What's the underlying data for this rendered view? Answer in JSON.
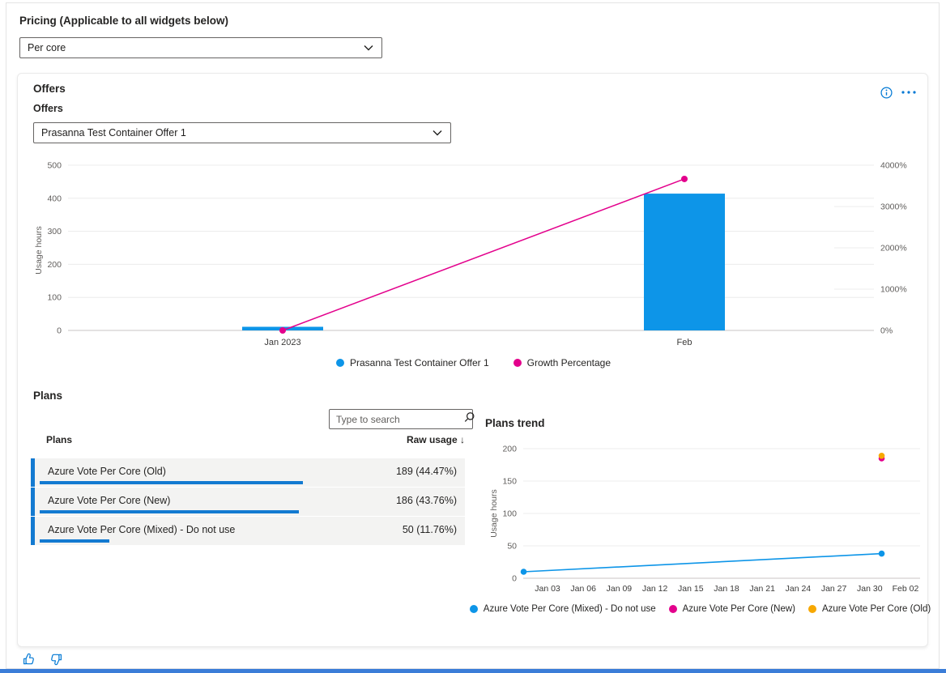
{
  "pricing": {
    "label": "Pricing (Applicable to all widgets below)",
    "selected": "Per core"
  },
  "offers_card": {
    "title": "Offers",
    "info_icon": "info-circle",
    "more_icon": "ellipsis",
    "offers_label": "Offers",
    "offers_selected": "Prasanna Test Container Offer 1"
  },
  "plans": {
    "section_title": "Plans",
    "search_placeholder": "Type to search",
    "columns": {
      "plans": "Plans",
      "raw_usage": "Raw usage",
      "sort_icon": "↓"
    },
    "rows": [
      {
        "name": "Azure Vote Per Core (Old)",
        "display": "189 (44.47%)",
        "value": 189,
        "pct": 44.47
      },
      {
        "name": "Azure Vote Per Core (New)",
        "display": "186 (43.76%)",
        "value": 186,
        "pct": 43.76
      },
      {
        "name": "Azure Vote Per Core (Mixed) - Do not use",
        "display": "50 (11.76%)",
        "value": 50,
        "pct": 11.76
      }
    ]
  },
  "colors": {
    "blue": "#0d95e8",
    "magenta": "#e3008c",
    "orange": "#f7a800",
    "accent": "#0078d4",
    "progress": "#137ad1",
    "bottom_bar": "#3b7dd8",
    "grid": "#ececec",
    "axis": "#c8c6c4",
    "text_axis": "#605e5c"
  },
  "chart_data": [
    {
      "id": "offers-usage-trend",
      "type": "bar",
      "subtype": "combo-bar-line-dual-axis",
      "categories": [
        "Jan 2023",
        "Feb"
      ],
      "series": [
        {
          "name": "Prasanna Test Container Offer 1",
          "kind": "bar",
          "yaxis": "left",
          "color_key": "blue",
          "values": [
            11,
            414
          ]
        },
        {
          "name": "Growth Percentage",
          "kind": "line",
          "yaxis": "right",
          "color_key": "magenta",
          "values": [
            0,
            3667
          ]
        }
      ],
      "left_axis": {
        "label": "Usage hours",
        "ticks": [
          0,
          100,
          200,
          300,
          400,
          500
        ],
        "max": 500
      },
      "right_axis": {
        "ticks": [
          "0%",
          "1000%",
          "2000%",
          "3000%",
          "4000%"
        ],
        "max": 4000
      },
      "legend_position": "bottom-center",
      "grid": true
    },
    {
      "id": "plans-trend",
      "type": "line",
      "title": "Plans trend",
      "yaxis": {
        "label": "Usage hours",
        "ticks": [
          0,
          50,
          100,
          150,
          200
        ],
        "max": 200
      },
      "xticks": [
        "Jan 03",
        "Jan 06",
        "Jan 09",
        "Jan 12",
        "Jan 15",
        "Jan 18",
        "Jan 21",
        "Jan 24",
        "Jan 27",
        "Jan 30",
        "Feb 02"
      ],
      "tick_first_day": 3,
      "tick_step_days": 3,
      "series": [
        {
          "name": "Azure Vote Per Core (Mixed) - Do not use",
          "color_key": "blue",
          "points": [
            {
              "day": 1,
              "value": 10
            },
            {
              "day": 31,
              "value": 38
            }
          ]
        },
        {
          "name": "Azure Vote Per Core (New)",
          "color_key": "magenta",
          "points": [
            {
              "day": 31,
              "value": 185
            }
          ]
        },
        {
          "name": "Azure Vote Per Core (Old)",
          "color_key": "orange",
          "points": [
            {
              "day": 31,
              "value": 189
            }
          ]
        }
      ],
      "legend_position": "bottom-center",
      "grid": true
    }
  ],
  "footer": {
    "thumbs_up_icon": "thumbs-up",
    "thumbs_down_icon": "thumbs-down"
  }
}
